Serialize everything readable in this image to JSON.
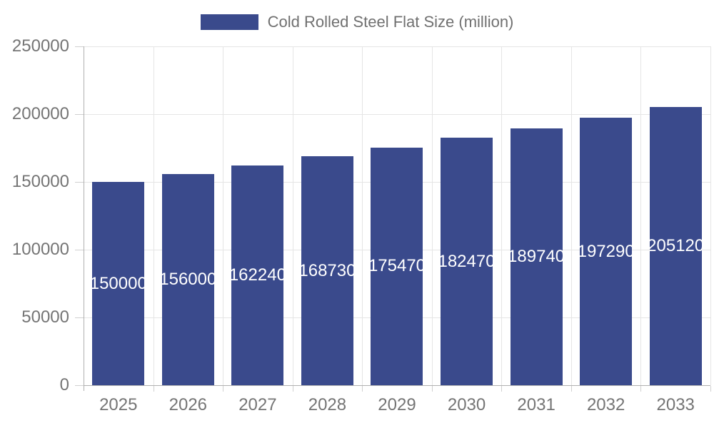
{
  "legend": {
    "label": "Cold Rolled Steel Flat Size (million)"
  },
  "colors": {
    "bar": "#3A4A8C",
    "grid": "#e5e5e5",
    "axis_line": "#b0b0b0",
    "tick": "#d0d0d0",
    "axis_text": "#757575",
    "legend_text": "#707070",
    "value_text": "#ffffff",
    "background": "#ffffff"
  },
  "chart_data": {
    "type": "bar",
    "title": "Cold Rolled Steel Flat Size (million)",
    "series": [
      {
        "name": "Cold Rolled Steel Flat Size (million)",
        "values": [
          150000,
          156000,
          162240,
          168730,
          175470,
          182470,
          189740,
          197290,
          205120
        ]
      }
    ],
    "categories": [
      "2025",
      "2026",
      "2027",
      "2028",
      "2029",
      "2030",
      "2031",
      "2032",
      "2033"
    ],
    "value_labels": [
      "150000",
      "156000",
      "162240",
      "168730",
      "175470",
      "182470",
      "189740",
      "197290",
      "205120"
    ],
    "value_label_position": "inside-middle",
    "xlabel": "",
    "ylabel": "",
    "ylim": [
      0,
      250000
    ],
    "yticks": [
      0,
      50000,
      100000,
      150000,
      200000,
      250000
    ],
    "ytick_labels": [
      "0",
      "50000",
      "100000",
      "150000",
      "200000",
      "250000"
    ],
    "grid": true,
    "legend_position": "top-center"
  }
}
